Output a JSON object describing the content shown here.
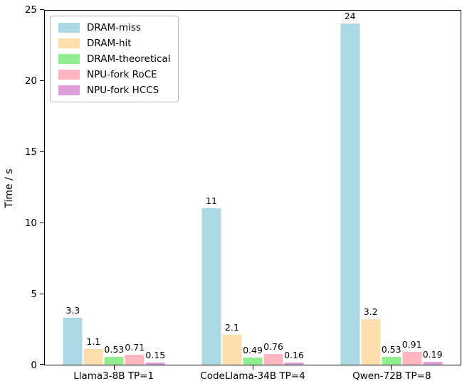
{
  "chart_data": {
    "type": "bar",
    "title": "",
    "xlabel": "",
    "ylabel": "Time / s",
    "ylim": [
      0,
      25
    ],
    "yticks": [
      0,
      5,
      10,
      15,
      20,
      25
    ],
    "grid": false,
    "legend_position": "upper left",
    "categories": [
      "Llama3-8B TP=1",
      "CodeLlama-34B TP=4",
      "Qwen-72B TP=8"
    ],
    "series": [
      {
        "name": "DRAM-miss",
        "color": "#ADD8E6",
        "values": [
          3.3,
          11,
          24
        ],
        "labels": [
          "3.3",
          "11",
          "24"
        ]
      },
      {
        "name": "DRAM-hit",
        "color": "#FFDEAD",
        "values": [
          1.1,
          2.1,
          3.2
        ],
        "labels": [
          "1.1",
          "2.1",
          "3.2"
        ]
      },
      {
        "name": "DRAM-theoretical",
        "color": "#90EE90",
        "values": [
          0.53,
          0.49,
          0.53
        ],
        "labels": [
          "0.53",
          "0.49",
          "0.53"
        ]
      },
      {
        "name": "NPU-fork RoCE",
        "color": "#FFB6C1",
        "values": [
          0.71,
          0.76,
          0.91
        ],
        "labels": [
          "0.71",
          "0.76",
          "0.91"
        ]
      },
      {
        "name": "NPU-fork HCCS",
        "color": "#DDA0DD",
        "values": [
          0.15,
          0.16,
          0.19
        ],
        "labels": [
          "0.15",
          "0.16",
          "0.19"
        ]
      }
    ]
  }
}
